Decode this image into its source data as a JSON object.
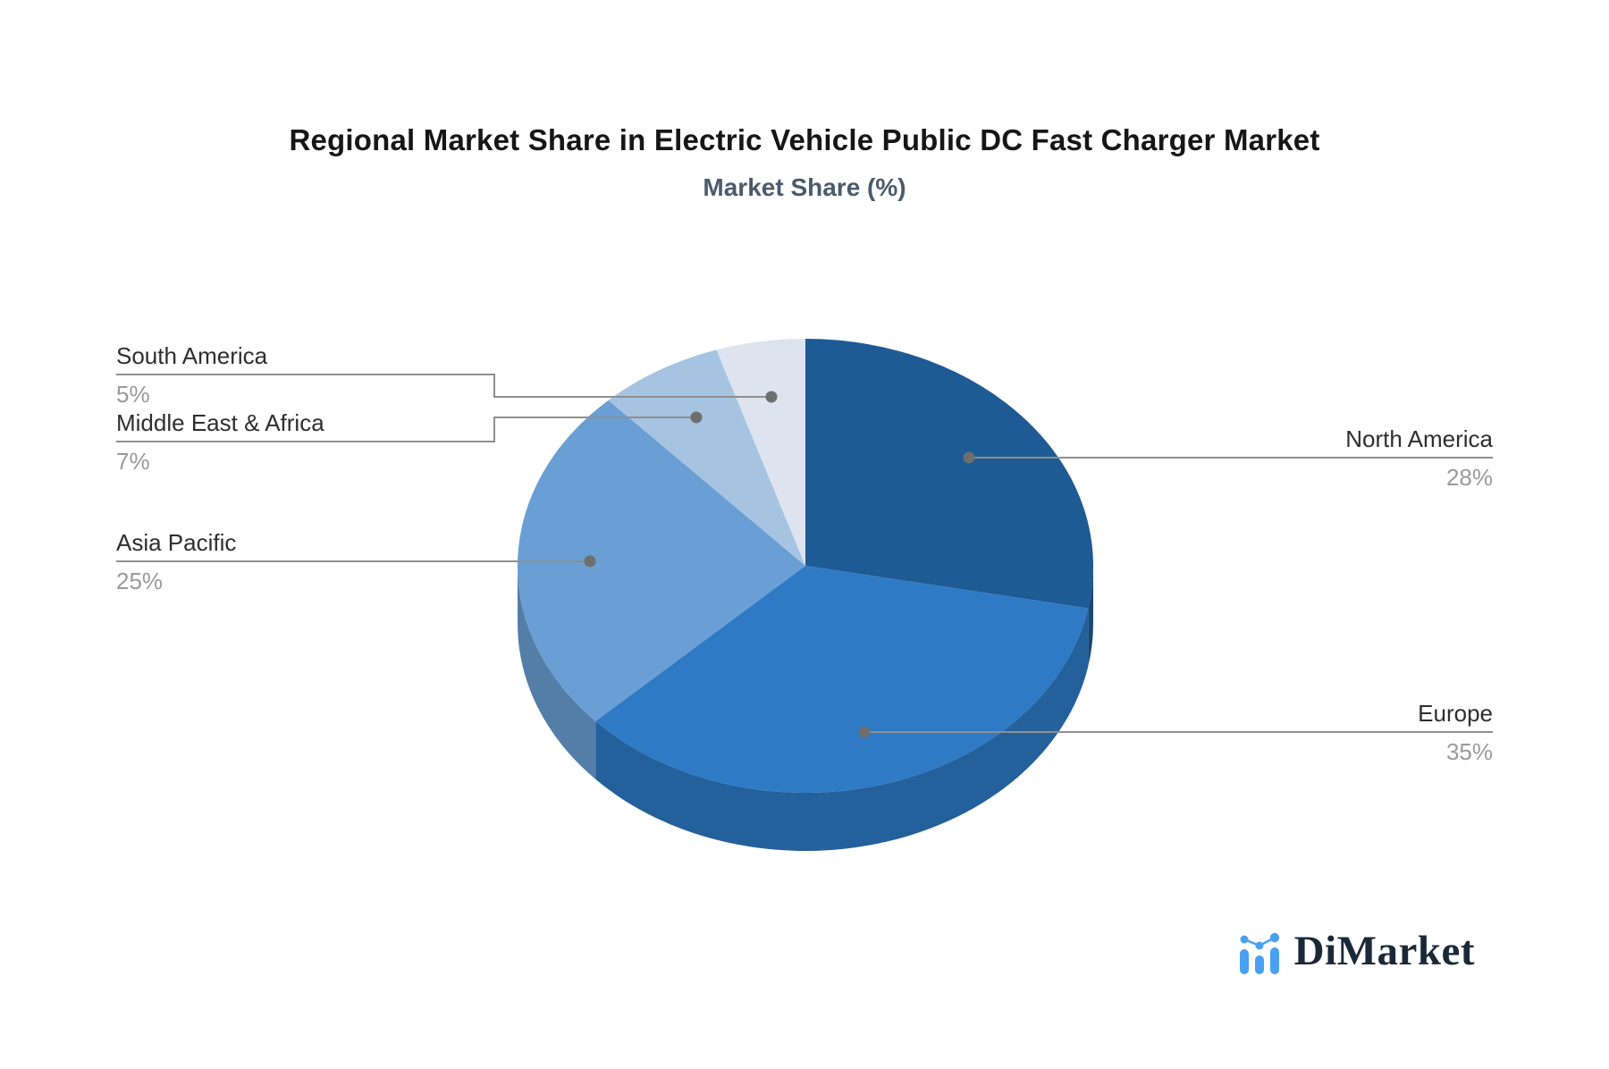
{
  "header": {
    "title": "Regional Market Share in Electric Vehicle Public DC Fast Charger Market",
    "subtitle": "Market Share (%)"
  },
  "chart_data": {
    "type": "pie",
    "style": "3d",
    "title": "Regional Market Share in Electric Vehicle Public DC Fast Charger Market",
    "subtitle": "Market Share (%)",
    "unit": "%",
    "start_angle_deg": 0,
    "direction": "clockwise",
    "legend_position": "callout-labels",
    "slices": [
      {
        "label": "North America",
        "value": 28,
        "color": "#1e5b95"
      },
      {
        "label": "Europe",
        "value": 35,
        "color": "#2e7ac4"
      },
      {
        "label": "Asia Pacific",
        "value": 25,
        "color": "#699fd4"
      },
      {
        "label": "Middle East & Africa",
        "value": 7,
        "color": "#a6c4e2"
      },
      {
        "label": "South America",
        "value": 5,
        "color": "#dde4ef"
      }
    ],
    "leader_color": "#8f8f8f",
    "dot_color": "#6e6e6e",
    "label_color": "#2e2e2e",
    "value_color": "#9a9a9a"
  },
  "logo": {
    "text": "DiMarket",
    "icon": "bar-line-chart-icon",
    "icon_color": "#4aa0f0",
    "text_color": "#1b2838"
  }
}
